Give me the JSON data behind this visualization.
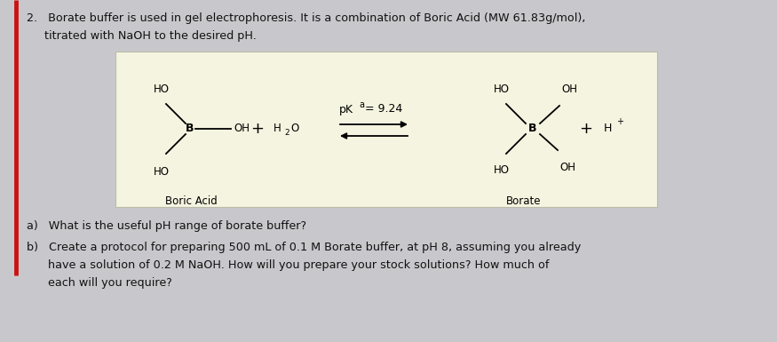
{
  "bg_color": "#c8c8cc",
  "panel_bg": "#f5f4e0",
  "text_color": "#111111",
  "red_line_color": "#cc1111",
  "title_line1": "2.   Borate buffer is used in gel electrophoresis. It is a combination of Boric Acid (MW 61.83g/mol),",
  "title_line2": "     titrated with NaOH to the desired pH.",
  "qa": "a)   What is the useful pH range of borate buffer?",
  "qb1": "b)   Create a protocol for preparing 500 mL of 0.1 M Borate buffer, at pH 8, assuming you already",
  "qb2": "      have a solution of 0.2 M NaOH. How will you prepare your stock solutions? How much of",
  "qb3": "      each will you require?"
}
